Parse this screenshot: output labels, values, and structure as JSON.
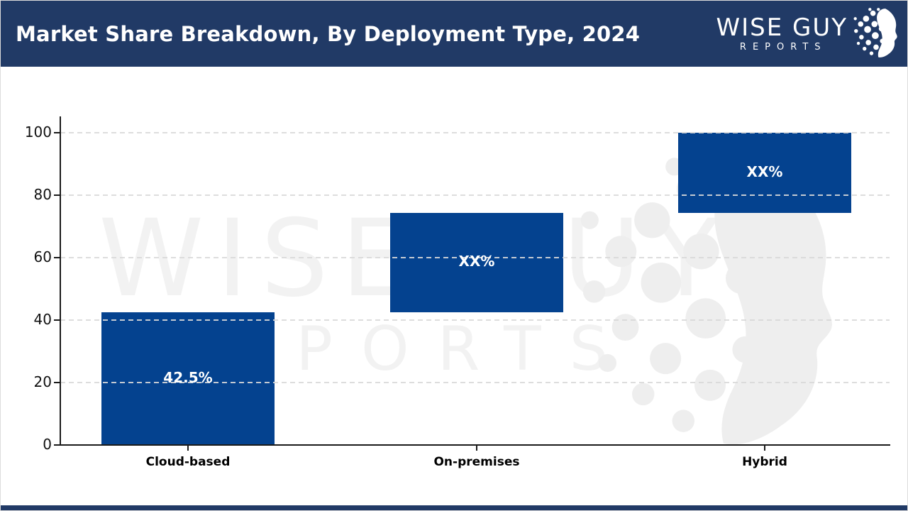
{
  "header": {
    "title": "Market Share Breakdown, By Deployment Type, 2024",
    "logo": {
      "line1": "WISE GUY",
      "line2": "REPORTS"
    }
  },
  "watermark": {
    "line1": "WISE GUY",
    "line2": "REPORTS"
  },
  "colors": {
    "header_bg": "#213a66",
    "footer_bg": "#213a66",
    "bar": "#04428f",
    "bar_label": "#ffffff",
    "grid": "#d9d9d9",
    "axis": "#1a1a1a",
    "watermark": "#f2f2f2"
  },
  "chart_data": {
    "type": "bar",
    "subtype": "floating-segment-waterfall",
    "title": "Market Share Breakdown, By Deployment Type, 2024",
    "categories": [
      "Cloud-based",
      "On-premises",
      "Hybrid"
    ],
    "series": [
      {
        "name": "Market share by deployment type",
        "segments": [
          {
            "category": "Cloud-based",
            "from": 0,
            "to": 42.5,
            "label": "42.5%"
          },
          {
            "category": "On-premises",
            "from": 42.5,
            "to": 74.3,
            "label": "XX%"
          },
          {
            "category": "Hybrid",
            "from": 74.3,
            "to": 100,
            "label": "XX%"
          }
        ]
      }
    ],
    "xlabel": "",
    "ylabel": "",
    "ylim": [
      0,
      100
    ],
    "yticks": [
      0,
      20,
      40,
      60,
      80,
      100
    ],
    "grid": "horizontal-dashed",
    "legend": "none"
  }
}
